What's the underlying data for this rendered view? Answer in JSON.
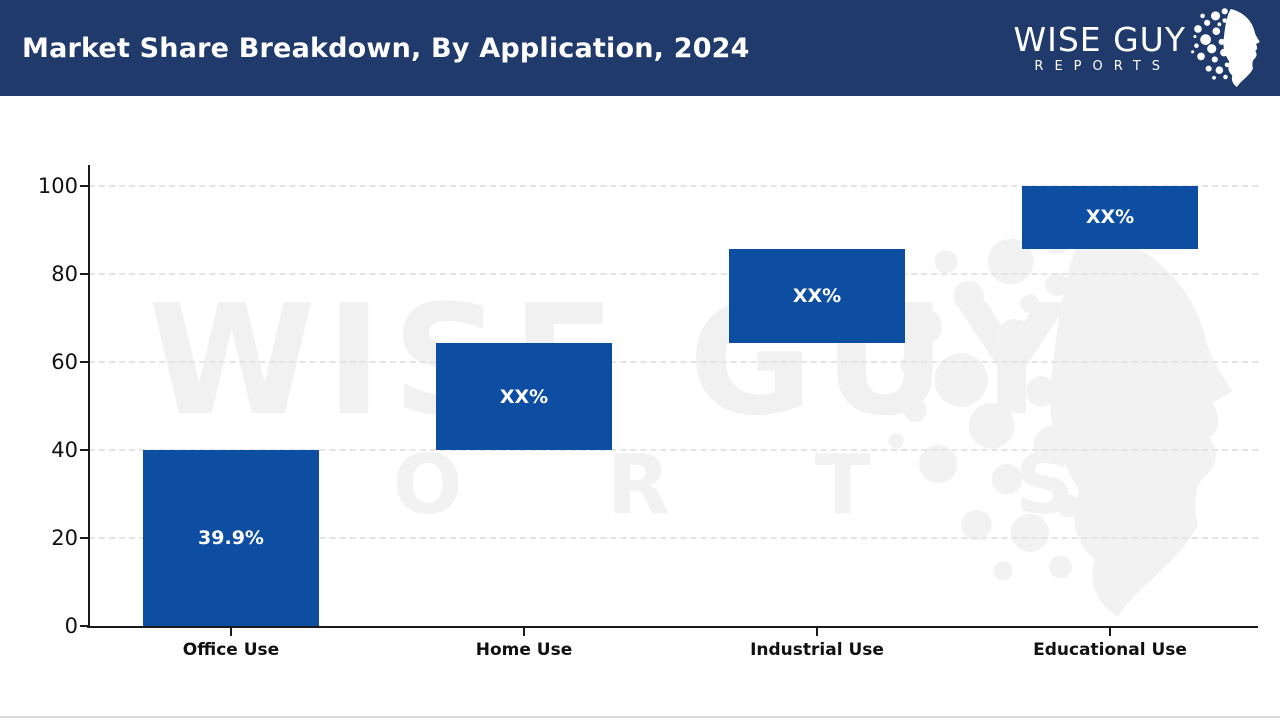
{
  "header": {
    "title": "Market Share Breakdown, By Application, 2024",
    "bg_color": "#1f3a6b",
    "brand": {
      "line1": "WISE GUY",
      "line2": "REPORTS"
    }
  },
  "chart_data": {
    "type": "bar",
    "subtype": "floating-waterfall",
    "title": "Market Share Breakdown, By Application, 2024",
    "categories": [
      "Office Use",
      "Home Use",
      "Industrial Use",
      "Educational Use"
    ],
    "segments": [
      {
        "category": "Office Use",
        "start": 0,
        "end": 39.9,
        "label": "39.9%"
      },
      {
        "category": "Home Use",
        "start": 39.9,
        "end": 64.4,
        "label": "XX%"
      },
      {
        "category": "Industrial Use",
        "start": 64.4,
        "end": 85.7,
        "label": "XX%"
      },
      {
        "category": "Educational Use",
        "start": 85.7,
        "end": 100,
        "label": "XX%"
      }
    ],
    "y_ticks": [
      0,
      20,
      40,
      60,
      80,
      100
    ],
    "ylim": [
      0,
      105
    ],
    "xlabel": "",
    "ylabel": "",
    "grid": "horizontal-dashed",
    "legend": "none",
    "bar_color": "#0d4da2",
    "bar_label_color": "#ffffff",
    "axis_color": "#1a1a1a",
    "watermark": {
      "line1": "WISE GUY",
      "line2": "R  O  R  T  S"
    }
  }
}
